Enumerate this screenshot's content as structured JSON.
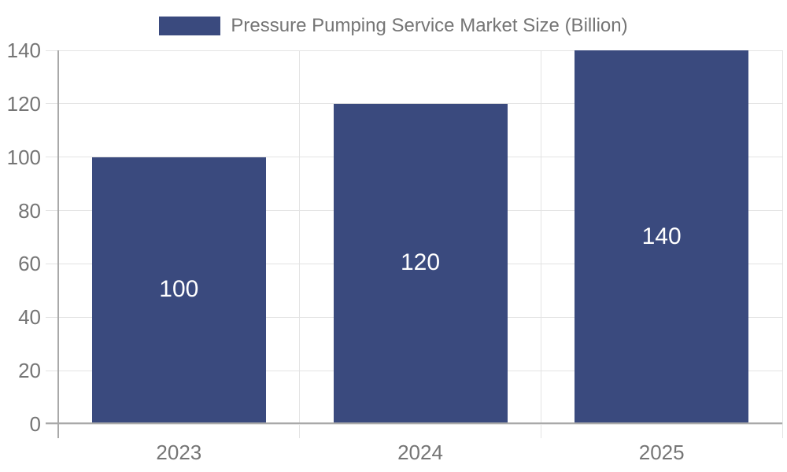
{
  "legend": {
    "label": "Pressure Pumping Service Market Size (Billion)"
  },
  "chart_data": {
    "type": "bar",
    "title": "Pressure Pumping Service Market Size (Billion)",
    "series_name": "Pressure Pumping Service Market Size (Billion)",
    "categories": [
      "2023",
      "2024",
      "2025"
    ],
    "values": [
      100,
      120,
      140
    ],
    "bar_value_labels": [
      "100",
      "120",
      "140"
    ],
    "xlabel": "",
    "ylabel": "",
    "ylim": [
      0,
      140
    ],
    "y_ticks": [
      0,
      20,
      40,
      60,
      80,
      100,
      120,
      140
    ],
    "grid": true,
    "legend_position": "top-center"
  },
  "colors": {
    "bar": "#3A4A7E",
    "grid": "#E3E3E3",
    "axis": "#A9A9A9",
    "tick_text": "#757575",
    "bar_label_text": "#FFFFFF",
    "background": "#FFFFFF"
  }
}
